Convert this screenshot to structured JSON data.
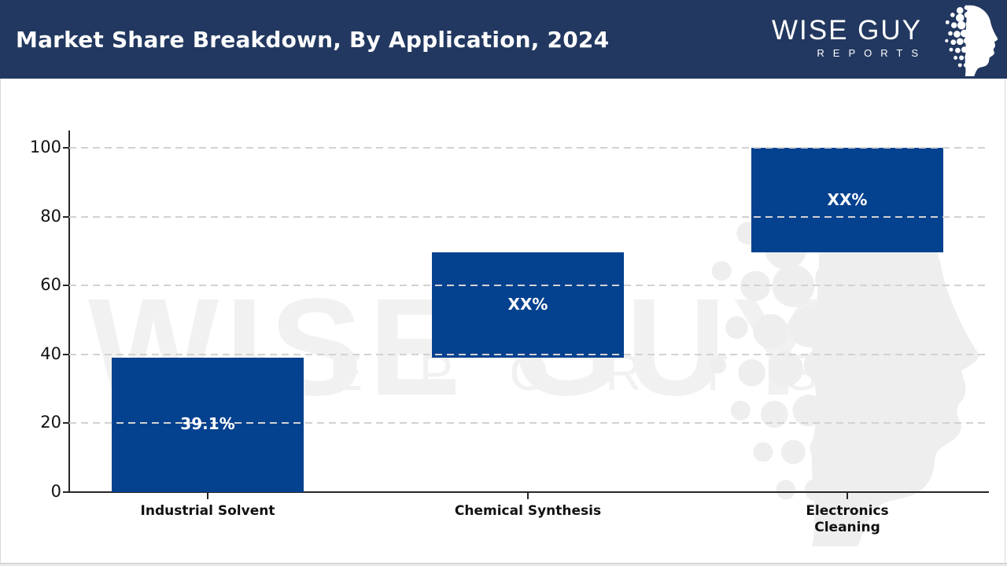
{
  "header": {
    "title": "Market Share Breakdown, By Application, 2024",
    "logo": {
      "line1": "WISE GUY",
      "line2": "REPORTS",
      "icon": "dotted-face-profile"
    }
  },
  "watermark": {
    "line1": "WISE GUY",
    "line2": "REPORTS",
    "icon": "dotted-face-profile"
  },
  "chart_data": {
    "type": "bar",
    "subtype": "waterfall",
    "title": "Market Share Breakdown, By Application, 2024",
    "xlabel": "",
    "ylabel": "",
    "categories": [
      "Industrial Solvent",
      "Chemical Synthesis",
      "Electronics\nCleaning"
    ],
    "segments": [
      {
        "category": "Industrial Solvent",
        "start": 0,
        "end": 39.1,
        "label": "39.1%"
      },
      {
        "category": "Chemical Synthesis",
        "start": 39.1,
        "end": 69.6,
        "label": "XX%"
      },
      {
        "category": "Electronics\nCleaning",
        "start": 69.6,
        "end": 100,
        "label": "XX%"
      }
    ],
    "ylim": [
      0,
      100
    ],
    "yticks": [
      0,
      20,
      40,
      60,
      80,
      100
    ],
    "grid": "horizontal-dashed, drawn over bars",
    "legend": "none",
    "bar_color": "#04418F",
    "bar_label_color": "#ffffff"
  },
  "colors": {
    "header_bg": "#223860",
    "header_text": "#ffffff",
    "bar": "#04418F",
    "axis": "#262626",
    "gridline": "#d2d2d2",
    "watermark": "#f1f1f1",
    "page_bg": "#ffffff",
    "edge_line": "#c6c6c6"
  }
}
